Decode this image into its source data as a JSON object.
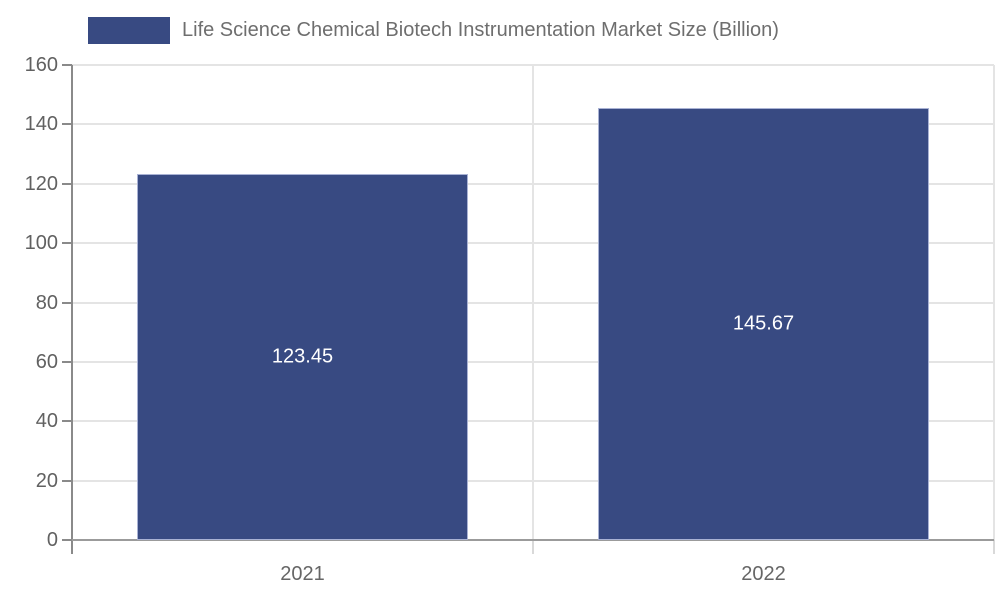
{
  "chart_data": {
    "type": "bar",
    "title": "",
    "legend": {
      "position": "top",
      "entries": [
        "Life Science Chemical Biotech Instrumentation Market Size (Billion)"
      ]
    },
    "categories": [
      "2021",
      "2022"
    ],
    "series": [
      {
        "name": "Life Science Chemical Biotech Instrumentation Market Size (Billion)",
        "values": [
          123.45,
          145.67
        ],
        "value_labels": [
          "123.45",
          "145.67"
        ]
      }
    ],
    "xlabel": "",
    "ylabel": "",
    "ylim": [
      0,
      160
    ],
    "yticks": [
      0,
      20,
      40,
      60,
      80,
      100,
      120,
      140,
      160
    ],
    "ytick_labels": [
      "0",
      "20",
      "40",
      "60",
      "80",
      "100",
      "120",
      "140",
      "160"
    ],
    "grid": true,
    "colors": {
      "bar_fill": "#384a82",
      "bar_border": "#a9b2d4",
      "grid_line": "#e4e4e4",
      "axis_line": "#8a8a8a",
      "tick_label": "#616161",
      "x_label": "#666666",
      "legend_text": "#6e6e6e",
      "value_label": "#ffffff",
      "background": "#ffffff"
    }
  }
}
